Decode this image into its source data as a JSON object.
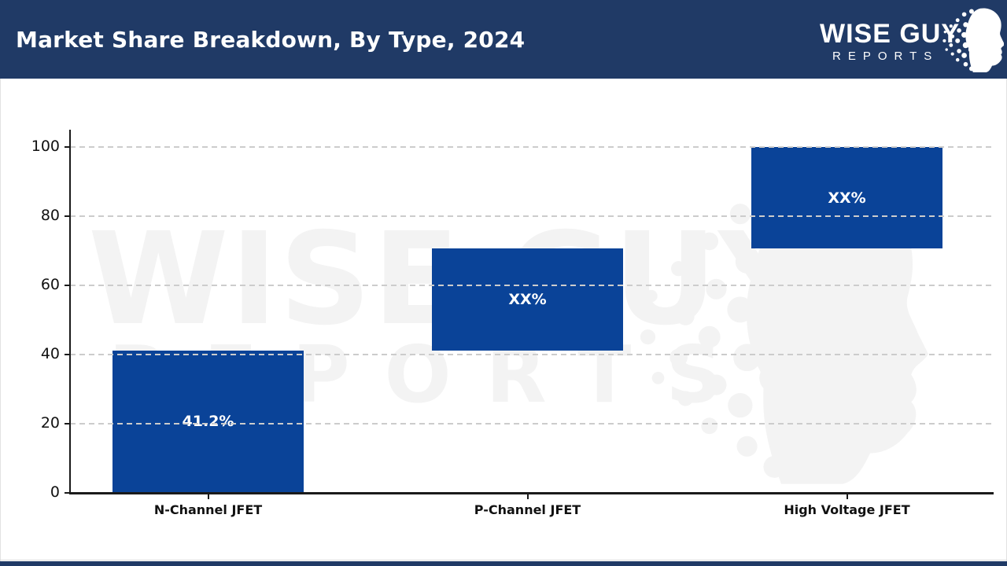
{
  "header": {
    "title": "Market Share Breakdown, By Type, 2024",
    "logo": {
      "line1": "WISE GUY",
      "line2": "REPORTS",
      "face_icon": "dotted-head-profile"
    }
  },
  "watermark": {
    "line1": "WISE GUY",
    "line2": "REPORTS",
    "face_icon": "dotted-head-profile"
  },
  "chart_data": {
    "type": "bar",
    "subtype": "waterfall-floating-bars",
    "title": "Market Share Breakdown, By Type, 2024",
    "categories": [
      "N-Channel JFET",
      "P-Channel JFET",
      "High Voltage JFET"
    ],
    "series": [
      {
        "name": "Market share",
        "bars": [
          {
            "category": "N-Channel JFET",
            "start": 0,
            "end": 41.2,
            "label": "41.2%"
          },
          {
            "category": "P-Channel JFET",
            "start": 41.2,
            "end": 70.6,
            "label": "XX%"
          },
          {
            "category": "High Voltage JFET",
            "start": 70.6,
            "end": 100,
            "label": "XX%"
          }
        ]
      }
    ],
    "xlabel": "",
    "ylabel": "",
    "ylim": [
      0,
      100
    ],
    "yticks": [
      0,
      20,
      40,
      60,
      80,
      100
    ],
    "grid": "horizontal-dashed",
    "legend_position": "none",
    "colors": {
      "bar": "#0a4398",
      "bar_label": "#ffffff",
      "grid": "#cccccc",
      "axis": "#1a1a1a",
      "tick_label": "#111111",
      "header_bg": "#203a66",
      "header_text": "#ffffff",
      "watermark": "#f3f3f3",
      "background": "#ffffff"
    }
  }
}
